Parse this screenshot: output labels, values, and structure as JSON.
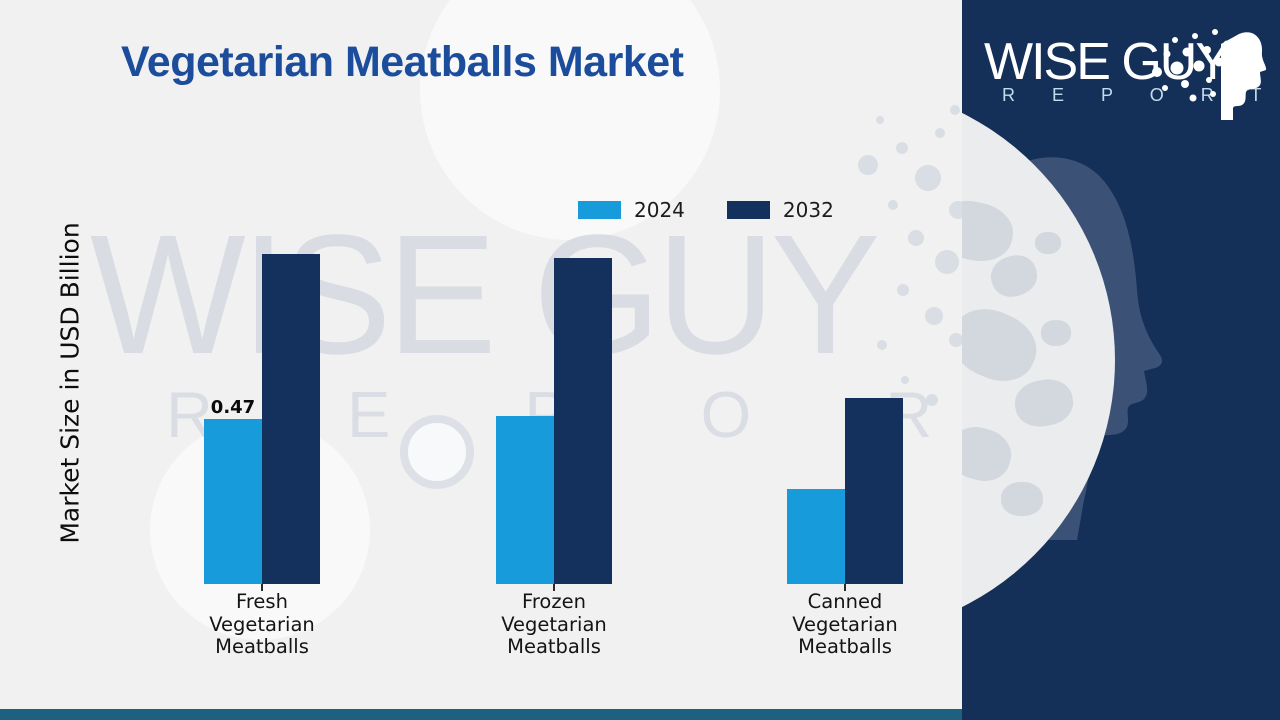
{
  "page": {
    "background_color": "#f1f1f2",
    "bottom_bar_color": "#1d607f"
  },
  "header": {
    "title": "Vegetarian Meatballs Market",
    "title_color": "#1c4c9c"
  },
  "axis": {
    "y_label": "Market Size in USD Billion"
  },
  "watermark": {
    "primary": "WISE GUY",
    "secondary": "R E P O R T S"
  },
  "brand": {
    "logo_primary": "WISE GUY",
    "logo_secondary": "R E P O R T S",
    "panel_color": "#143059",
    "face_silhouette_color": "#3b5276"
  },
  "chart_data": {
    "type": "bar",
    "title": "Vegetarian Meatballs Market",
    "xlabel": "",
    "ylabel": "Market Size in USD Billion",
    "categories": [
      "Fresh Vegetarian Meatballs",
      "Frozen Vegetarian Meatballs",
      "Canned Vegetarian Meatballs"
    ],
    "series": [
      {
        "name": "2024",
        "color": "#189bdb",
        "values": [
          0.47,
          0.48,
          0.27
        ],
        "data_labels": [
          "0.47",
          "",
          ""
        ]
      },
      {
        "name": "2032",
        "color": "#14305c",
        "values": [
          0.94,
          0.93,
          0.53
        ],
        "data_labels": [
          "",
          "",
          ""
        ]
      }
    ],
    "ylim": [
      0,
      1.0
    ],
    "grid": false,
    "y_axis_ticks_visible": false,
    "legend_position": "top-center"
  }
}
